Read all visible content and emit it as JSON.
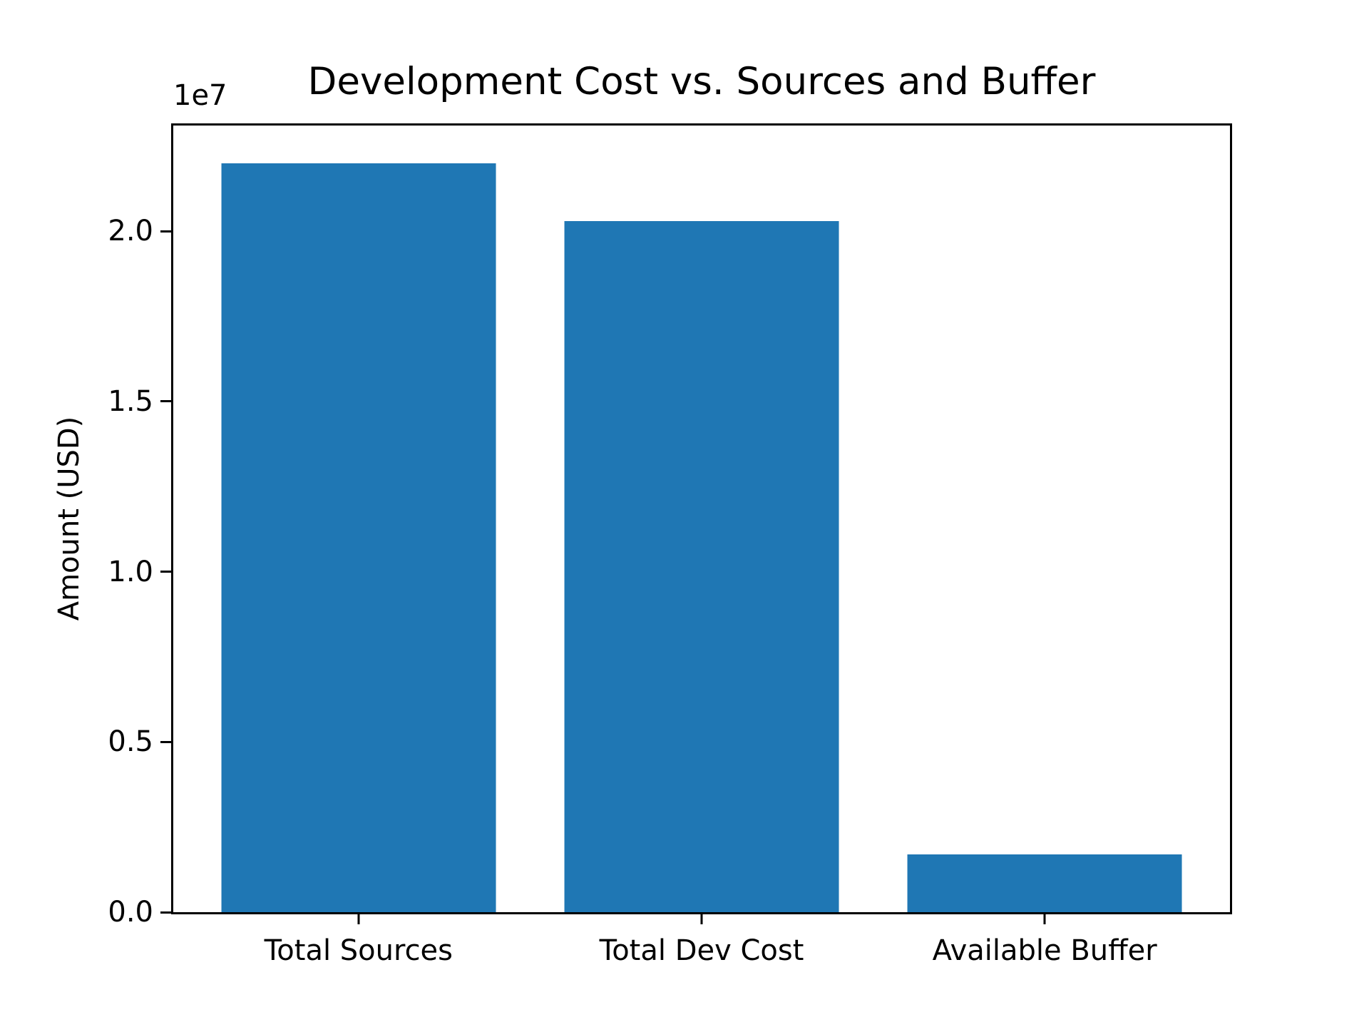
{
  "chart_data": {
    "type": "bar",
    "title": "Development Cost vs. Sources and Buffer",
    "xlabel": "",
    "ylabel": "Amount (USD)",
    "offset_text": "1e7",
    "categories": [
      "Total Sources",
      "Total Dev Cost",
      "Available Buffer"
    ],
    "values": [
      22000000,
      20300000,
      1700000
    ],
    "ylim": [
      0,
      23100000
    ],
    "yticks": [
      {
        "value": 0,
        "label": "0.0"
      },
      {
        "value": 5000000,
        "label": "0.5"
      },
      {
        "value": 10000000,
        "label": "1.0"
      },
      {
        "value": 15000000,
        "label": "1.5"
      },
      {
        "value": 20000000,
        "label": "2.0"
      }
    ],
    "bar_color": "#1f77b4",
    "axis_color": "#000000",
    "background_color": "#ffffff",
    "grid": false,
    "legend": "none"
  }
}
